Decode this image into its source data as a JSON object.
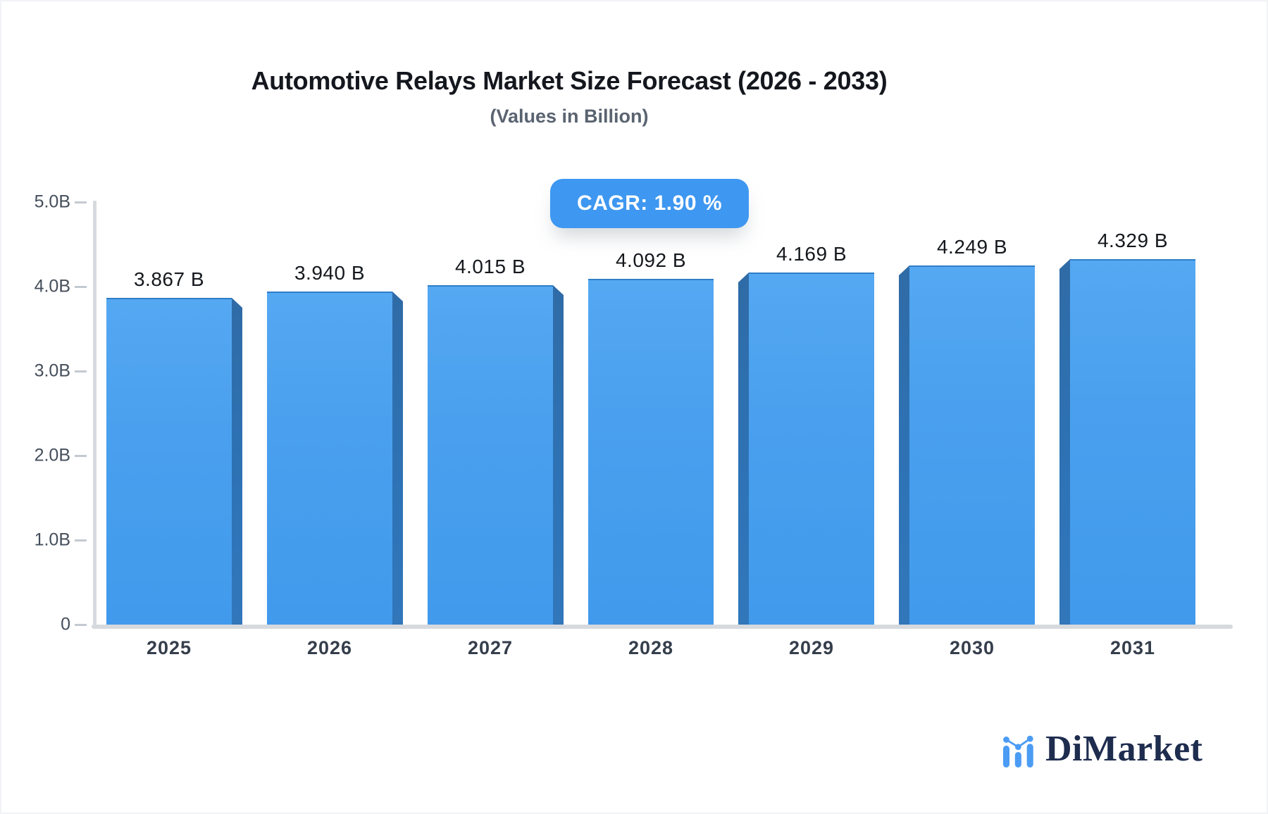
{
  "header": {
    "title": "Automotive Relays Market Size Forecast (2026 - 2033)",
    "subtitle": "(Values in Billion)"
  },
  "badge": {
    "label": "CAGR: 1.90 %"
  },
  "chart_data": {
    "type": "bar",
    "title": "Automotive Relays Market Size Forecast (2026 - 2033)",
    "subtitle": "(Values in Billion)",
    "cagr_label": "CAGR: 1.90 %",
    "categories": [
      "2025",
      "2026",
      "2027",
      "2028",
      "2029",
      "2030",
      "2031"
    ],
    "values": [
      3.867,
      3.94,
      4.015,
      4.092,
      4.169,
      4.249,
      4.329
    ],
    "value_labels": [
      "3.867 B",
      "3.940 B",
      "4.015 B",
      "4.092 B",
      "4.169 B",
      "4.249 B",
      "4.329 B"
    ],
    "ylabel": "",
    "xlabel": "",
    "ylim": [
      0,
      5
    ],
    "y_ticks": {
      "values": [
        5,
        4,
        3,
        2,
        1,
        0
      ],
      "labels": [
        "5.0B",
        "4.0B",
        "3.0B",
        "2.0B",
        "1.0B",
        "0"
      ]
    },
    "grid": false,
    "legend": false,
    "style": "3d-perspective-bars",
    "colors": {
      "bar_face": "#4AA0EE",
      "bar_side": "#2E73B6",
      "badge_bg": "#3E97F0",
      "axis": "#D6DADE",
      "label_text": "#15181D"
    }
  },
  "footer": {
    "logo_text": "DiMarket",
    "logo_icon": "bar-chart-with-dots-icon",
    "logo_color": "#1E2C4E",
    "logo_accent": "#4B9CF4"
  }
}
